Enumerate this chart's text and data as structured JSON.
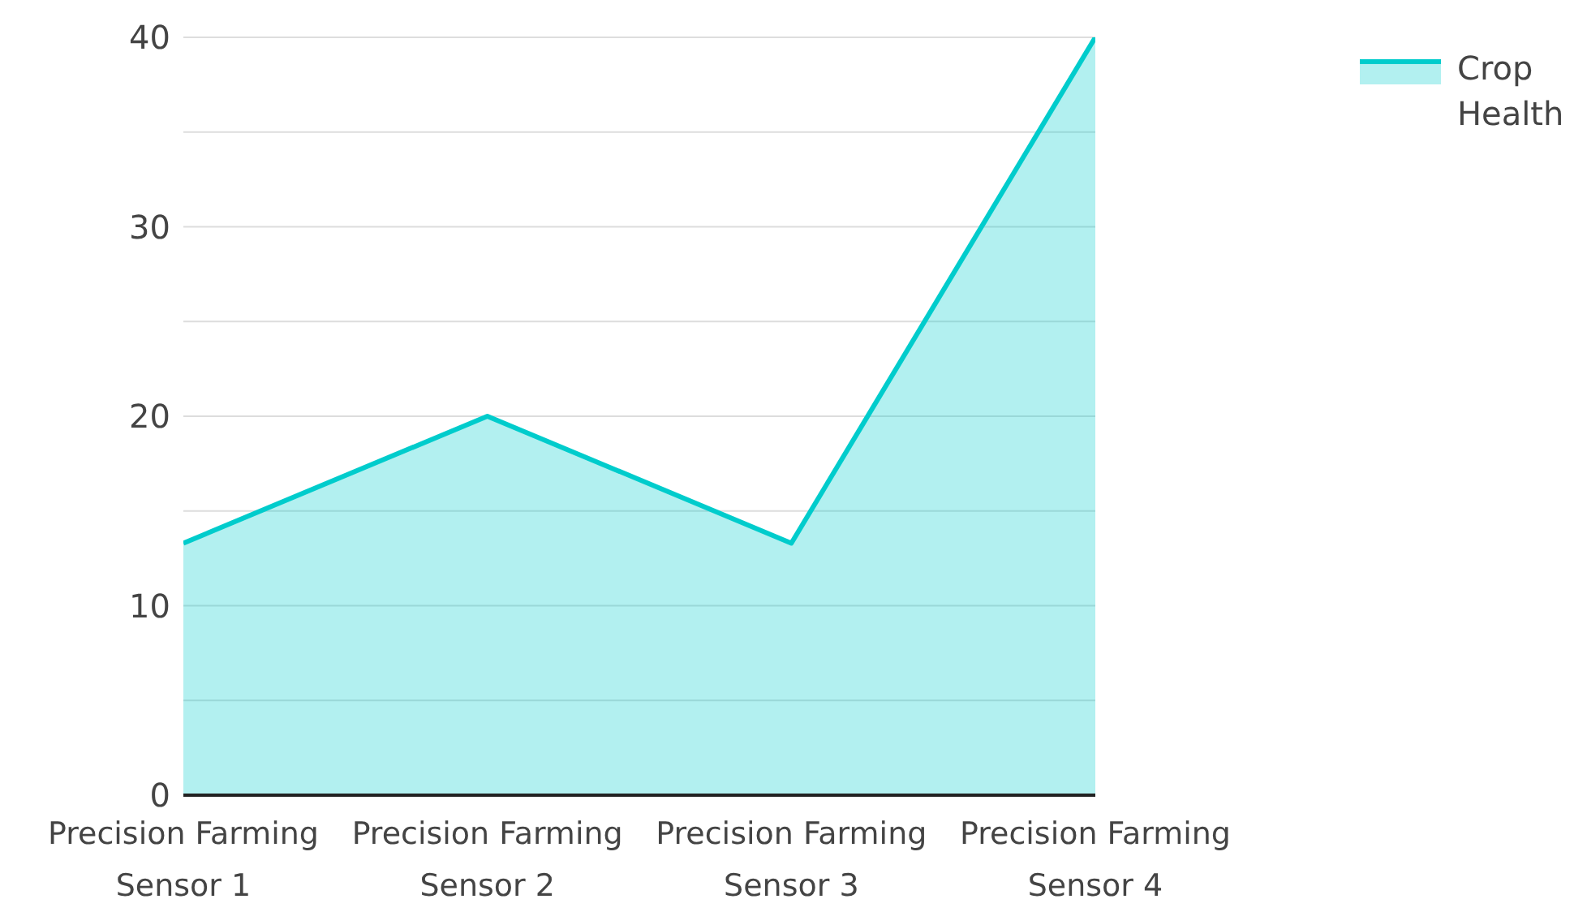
{
  "chart_data": {
    "type": "area",
    "categories": [
      "Precision Farming Sensor 1",
      "Precision Farming Sensor 2",
      "Precision Farming Sensor 3",
      "Precision Farming Sensor 4"
    ],
    "series": [
      {
        "name": "Crop Health",
        "color": "#00cccc",
        "values": [
          13.3,
          20,
          13.3,
          40
        ]
      }
    ],
    "ylim": [
      0,
      40
    ],
    "yticks": [
      0,
      {
        "value": 5,
        "label": null
      },
      10,
      {
        "value": 15,
        "label": null
      },
      20,
      {
        "value": 25,
        "label": null
      },
      30,
      {
        "value": 35,
        "label": null
      },
      40
    ],
    "grid": "y",
    "legend": "top right"
  }
}
